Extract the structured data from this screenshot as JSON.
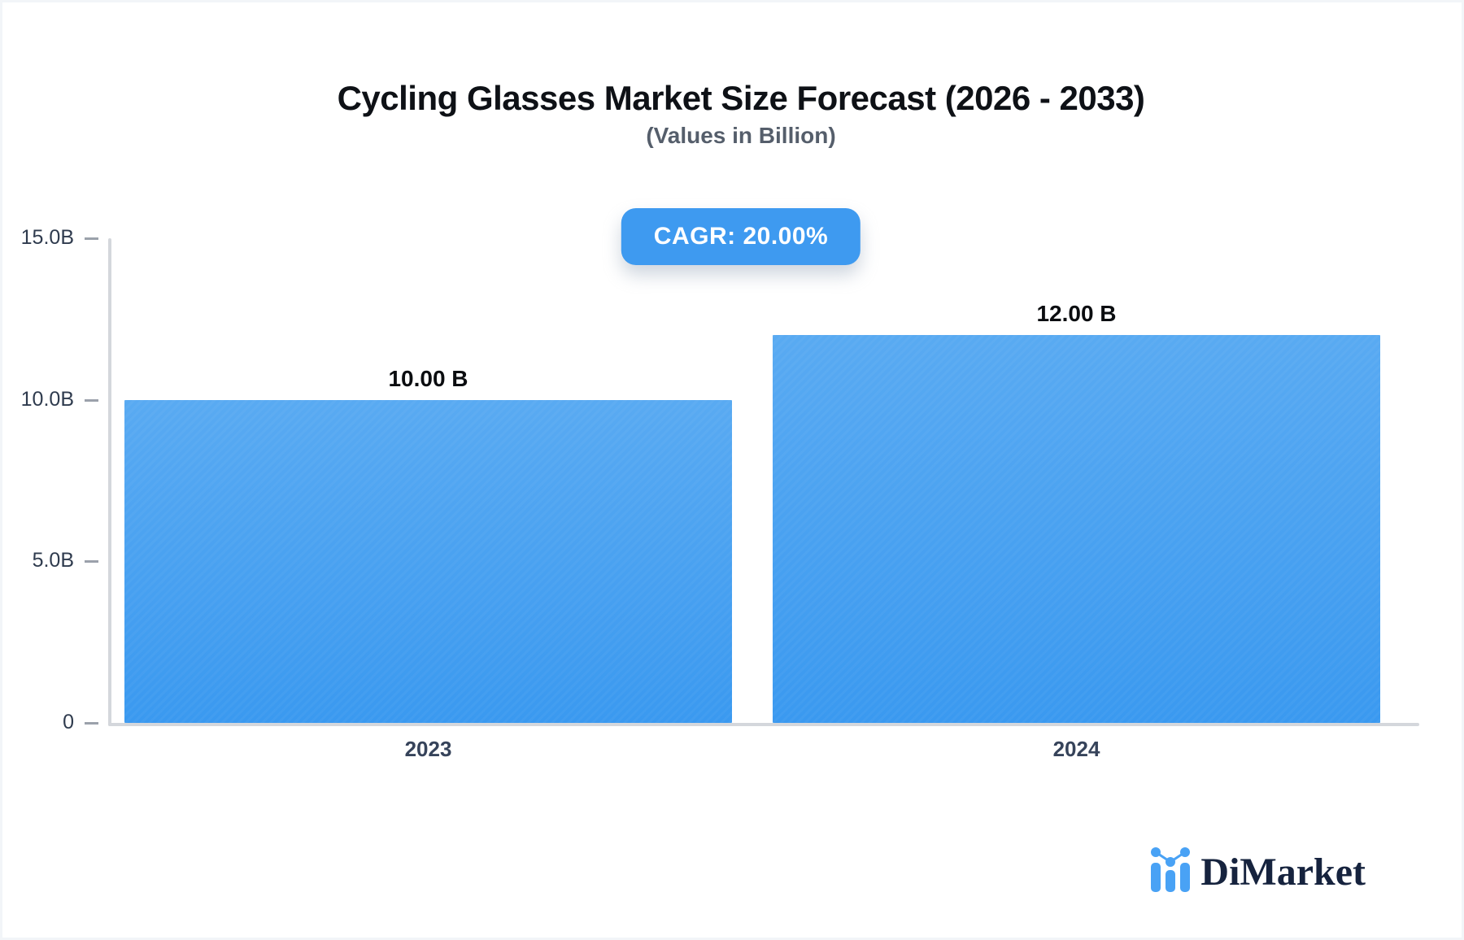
{
  "header": {
    "title": "Cycling Glasses Market Size Forecast (2026 - 2033)",
    "subtitle": "(Values in Billion)",
    "cagr_label": "CAGR: 20.00%"
  },
  "chart_data": {
    "type": "bar",
    "title": "Cycling Glasses Market Size Forecast (2026 - 2033)",
    "subtitle": "(Values in Billion)",
    "cagr_pct": "20.00%",
    "unit": "Billion",
    "categories": [
      "2023",
      "2024"
    ],
    "values": [
      10.0,
      12.0
    ],
    "value_labels": [
      "10.00 B",
      "12.00 B"
    ],
    "ylim": [
      0,
      15
    ],
    "yticks": [
      {
        "label": "15.0B",
        "value": 15
      },
      {
        "label": "10.0B",
        "value": 10
      },
      {
        "label": "5.0B",
        "value": 5
      },
      {
        "label": "0",
        "value": 0
      }
    ],
    "grid": false,
    "legend": null
  },
  "branding": {
    "logo_text": "DiMarket",
    "logo_icon": "bar-chart-logo-icon"
  },
  "colors": {
    "bar_gradient_top": "#59aaf2",
    "bar_gradient_bottom": "#3a99f0",
    "badge_bg": "#3e9af0",
    "badge_text": "#ffffff",
    "axis_line": "#d4d7dc",
    "tick_mark": "#9ba1ab",
    "y_label": "#2f3b4e",
    "x_label": "#36435a",
    "value_label": "#0b0d10",
    "title_text": "#0e1116",
    "subtitle_text": "#555e6b",
    "logo_text_color": "#16233e",
    "logo_icon_color": "#49a2f5"
  }
}
